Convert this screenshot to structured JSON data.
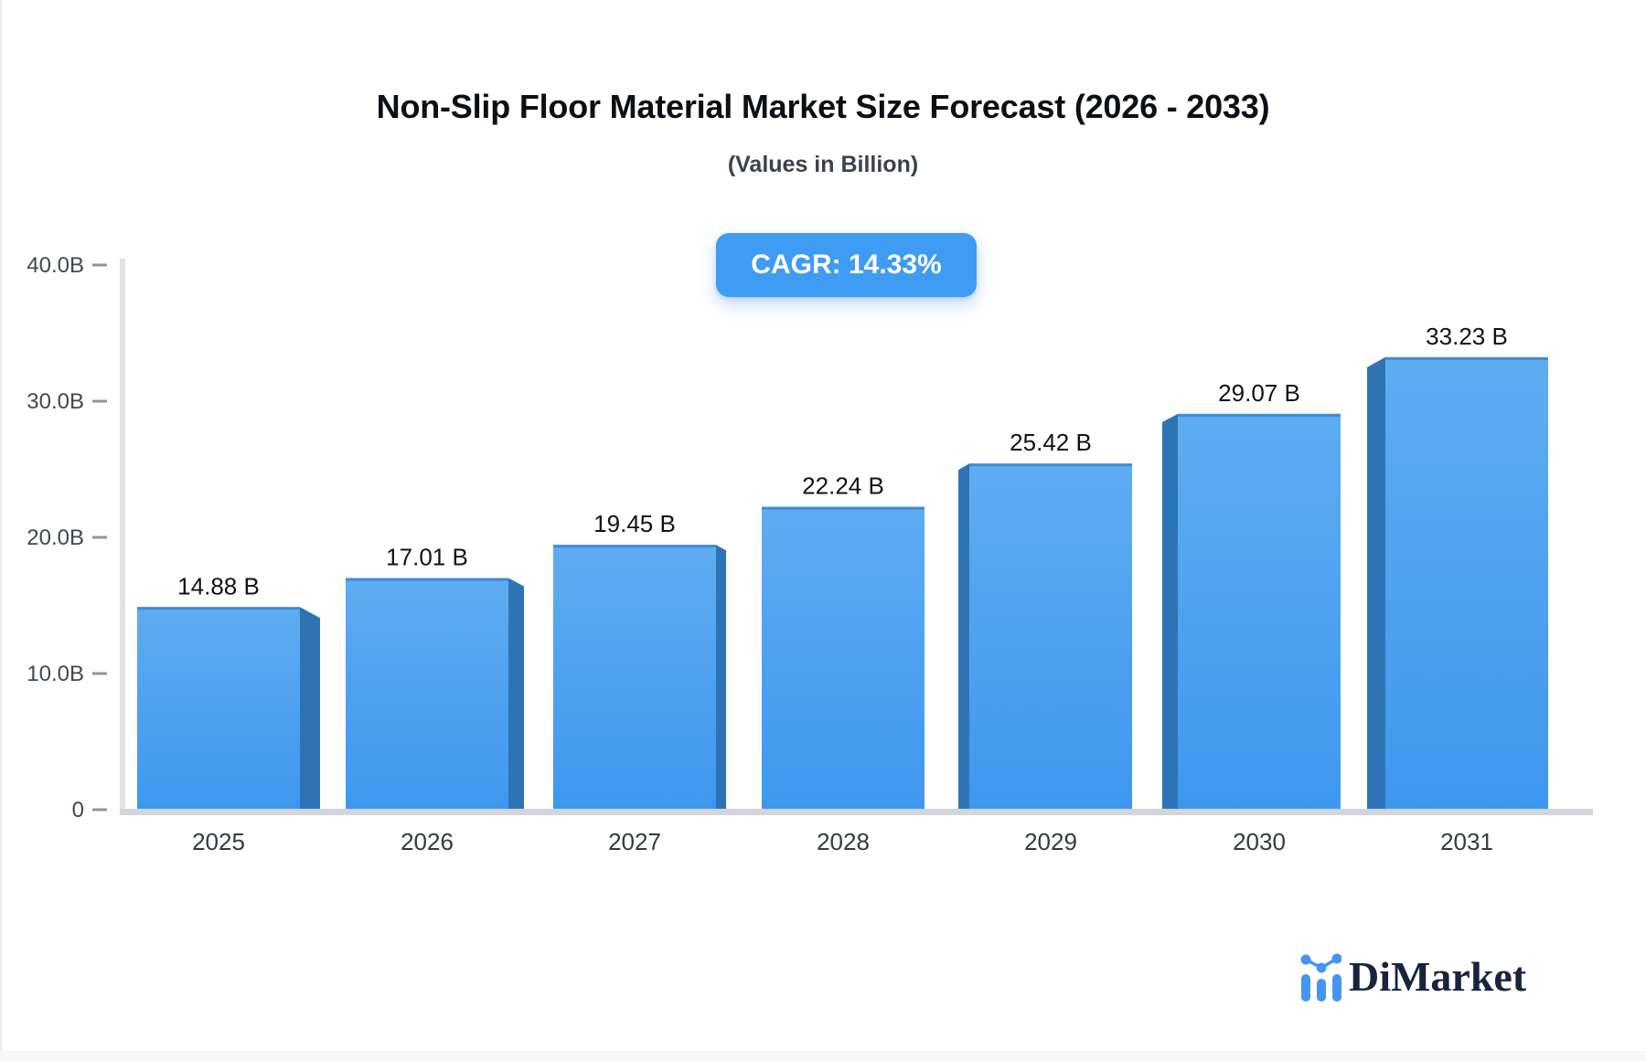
{
  "header": {
    "title": "Non-Slip Floor Material Market Size Forecast (2026 - 2033)",
    "subtitle": "(Values in Billion)",
    "cagr_label": "CAGR: 14.33%"
  },
  "chart_data": {
    "type": "bar",
    "title": "Non-Slip Floor Material Market Size Forecast (2026 - 2033)",
    "subtitle": "(Values in Billion)",
    "categories": [
      "2025",
      "2026",
      "2027",
      "2028",
      "2029",
      "2030",
      "2031"
    ],
    "values": [
      14.88,
      17.01,
      19.45,
      22.24,
      25.42,
      29.07,
      33.23
    ],
    "value_labels": [
      "14.88 B",
      "17.01 B",
      "19.45 B",
      "22.24 B",
      "25.42 B",
      "29.07 B",
      "33.23 B"
    ],
    "unit": "Billion",
    "cagr": "14.33%",
    "xlabel": "",
    "ylabel": "",
    "ylim": [
      0,
      40
    ],
    "ytick_values": [
      0,
      10,
      20,
      30,
      40
    ],
    "ytick_labels": [
      "0",
      "10.0B",
      "20.0B",
      "30.0B",
      "40.0B"
    ],
    "grid": false,
    "legend": false,
    "style": "3d-perspective-bars",
    "colors": {
      "bar_front_top": "#5facf1",
      "bar_front_bottom": "#3e97ef",
      "bar_top_edge": "#4189d8",
      "bar_side": "#2e74b5",
      "axis_line": "#e0e2e6",
      "baseline": "#d2d5da",
      "tick_dash": "#8f959c",
      "ytick_text": "#3f4754",
      "xtick_text": "#323a47",
      "value_text": "#101216",
      "badge_bg": "#3f9cf3",
      "badge_text": "#ffffff"
    }
  },
  "footer": {
    "brand": "DiMarket",
    "brand_icon": "mini-bar-chart-logo-icon"
  }
}
